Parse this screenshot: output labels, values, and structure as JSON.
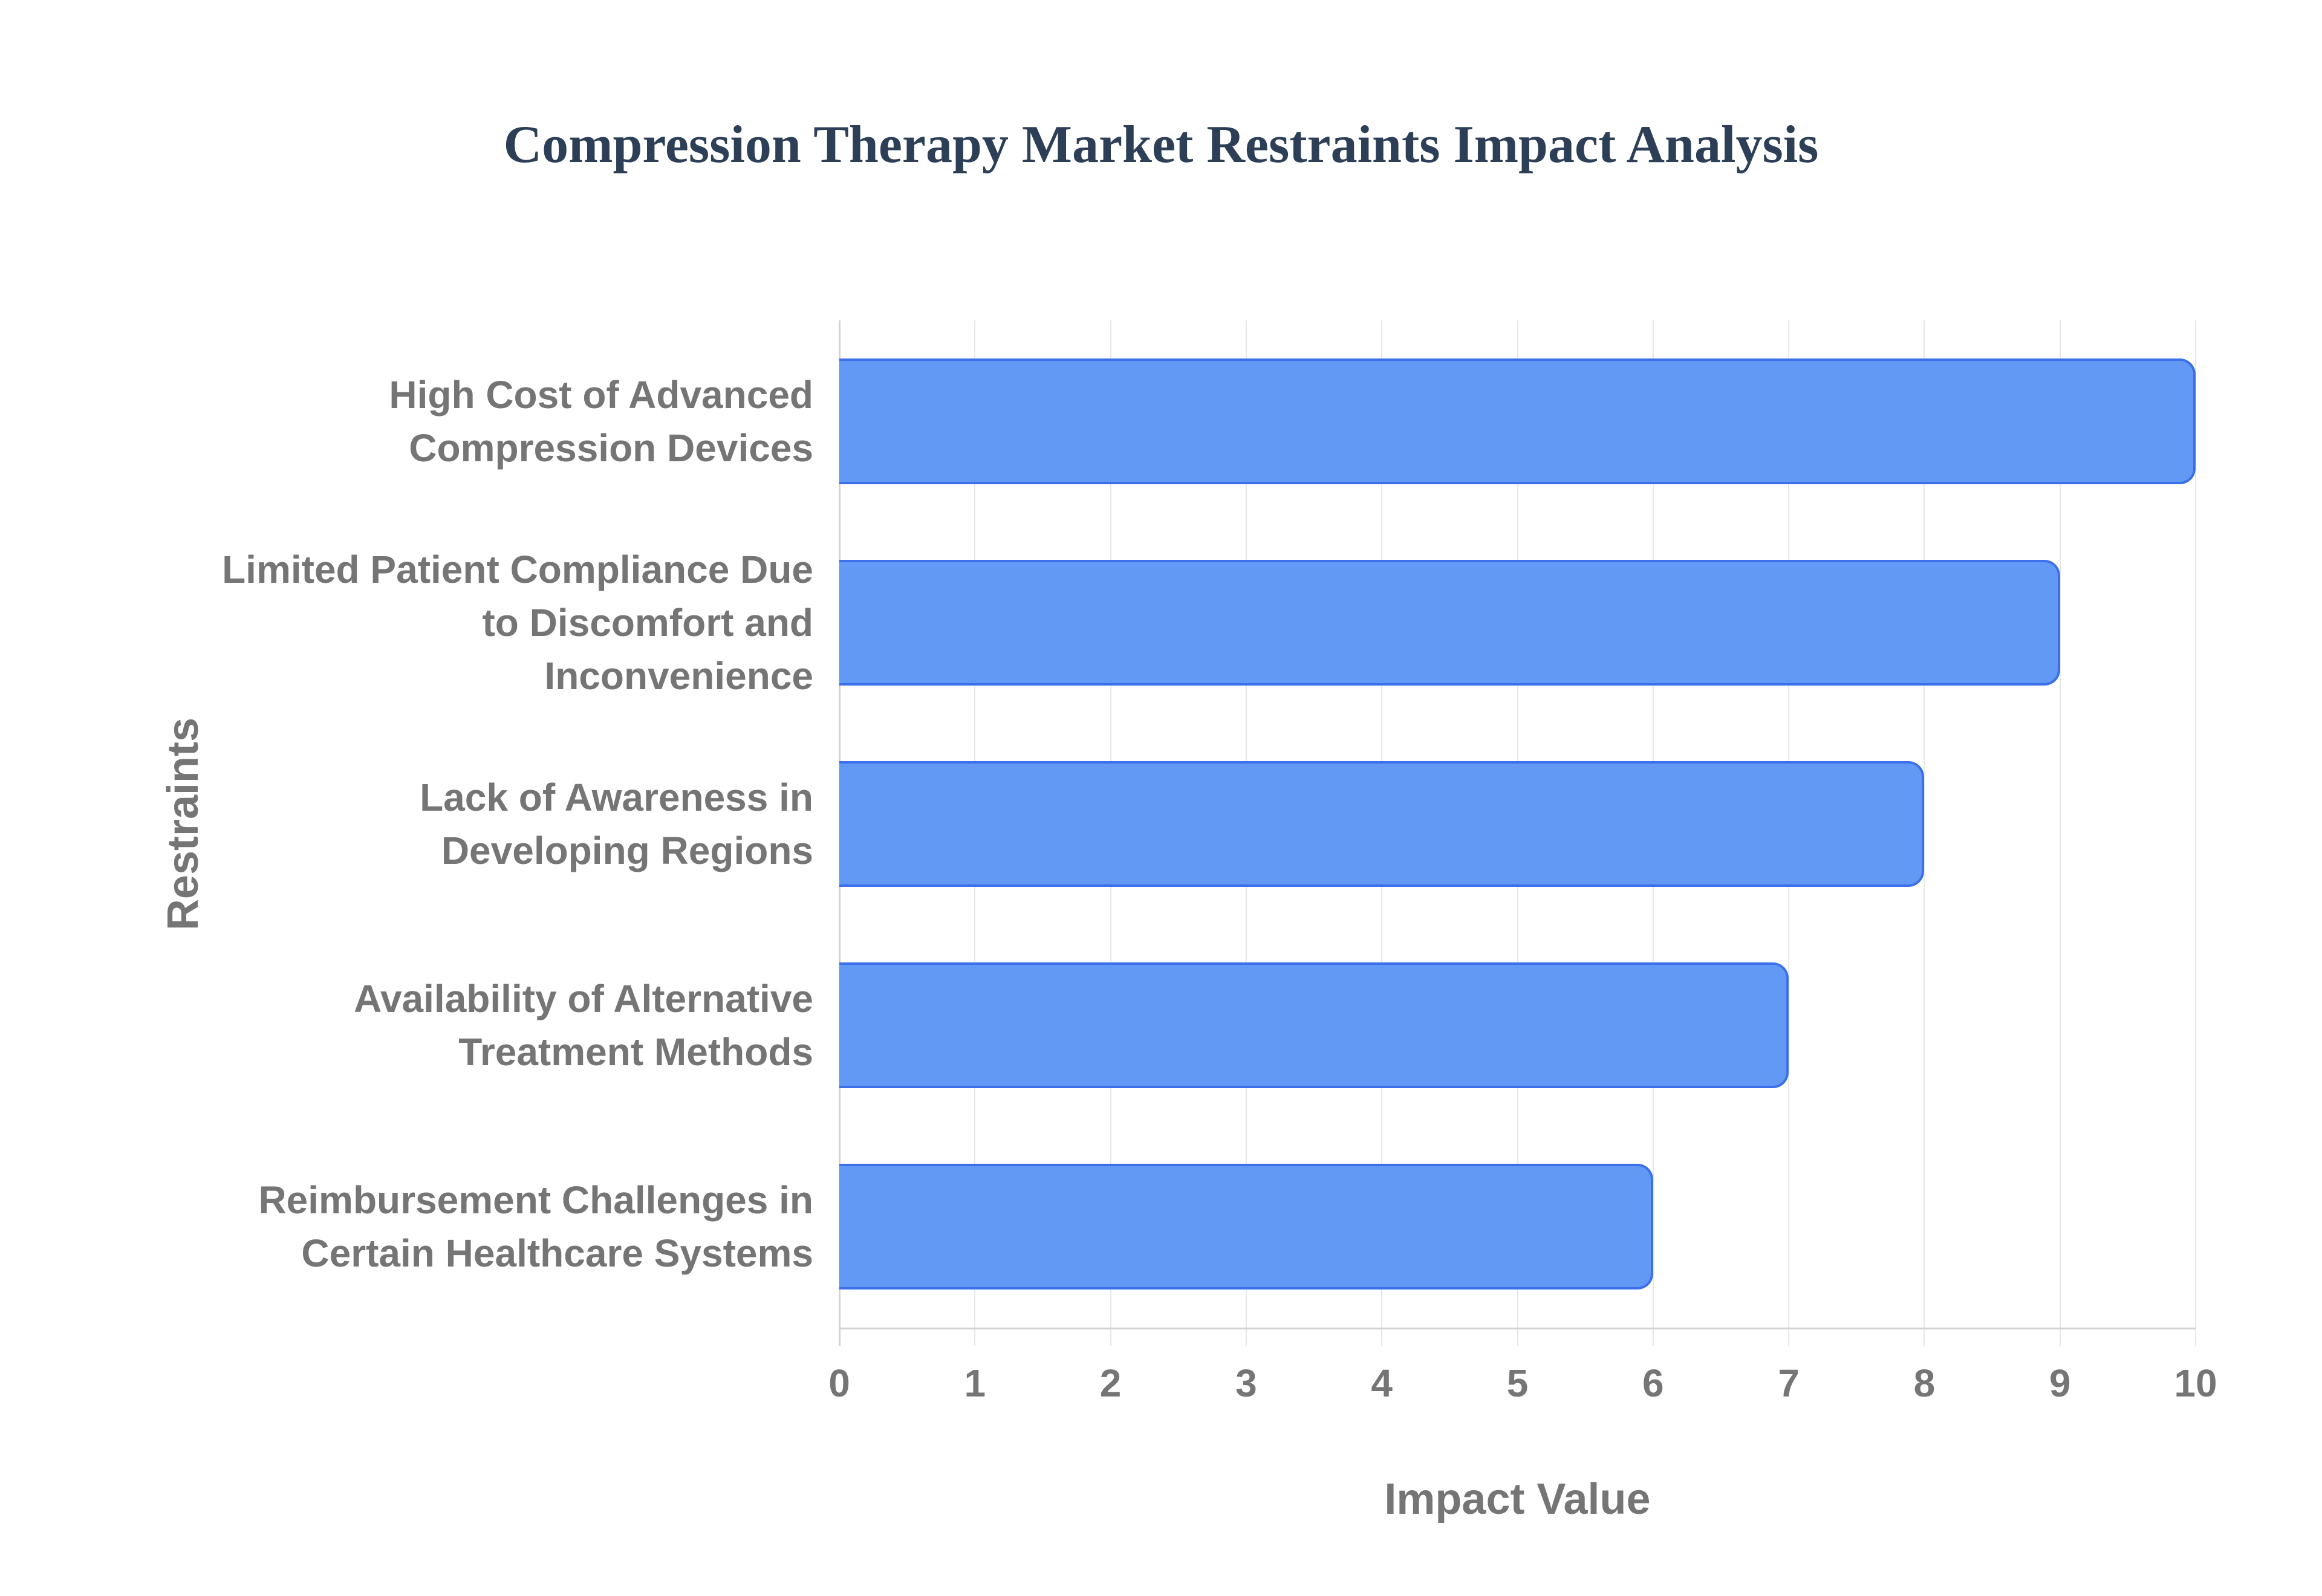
{
  "title": "Compression Therapy Market Restraints Impact Analysis",
  "chart_data": {
    "type": "bar",
    "orientation": "horizontal",
    "title": "Compression Therapy Market Restraints Impact Analysis",
    "xlabel": "Impact Value",
    "ylabel": "Restraints",
    "xlim": [
      0,
      10
    ],
    "x_ticks": [
      0,
      1,
      2,
      3,
      4,
      5,
      6,
      7,
      8,
      9,
      10
    ],
    "grid": "vertical-on",
    "legend": "none",
    "categories": [
      "High Cost of Advanced Compression Devices",
      "Limited Patient Compliance Due to Discomfort and Inconvenience",
      "Lack of Awareness in Developing Regions",
      "Availability of Alternative Treatment Methods",
      "Reimbursement Challenges in Certain Healthcare Systems"
    ],
    "category_lines": [
      [
        "High Cost of Advanced",
        "Compression Devices"
      ],
      [
        "Limited Patient Compliance Due",
        "to Discomfort and",
        "Inconvenience"
      ],
      [
        "Lack of Awareness in",
        "Developing Regions"
      ],
      [
        "Availability of Alternative",
        "Treatment Methods"
      ],
      [
        "Reimbursement Challenges in",
        "Certain Healthcare Systems"
      ]
    ],
    "values": [
      10,
      9,
      8,
      7,
      6
    ]
  },
  "colors": {
    "title": "#2c3f57",
    "axis_text": "#757575",
    "bar_fill": "#6199f5",
    "bar_border": "#3c70ea",
    "gridline": "#e7e7e7",
    "axis_line": "#d2d2d2"
  }
}
